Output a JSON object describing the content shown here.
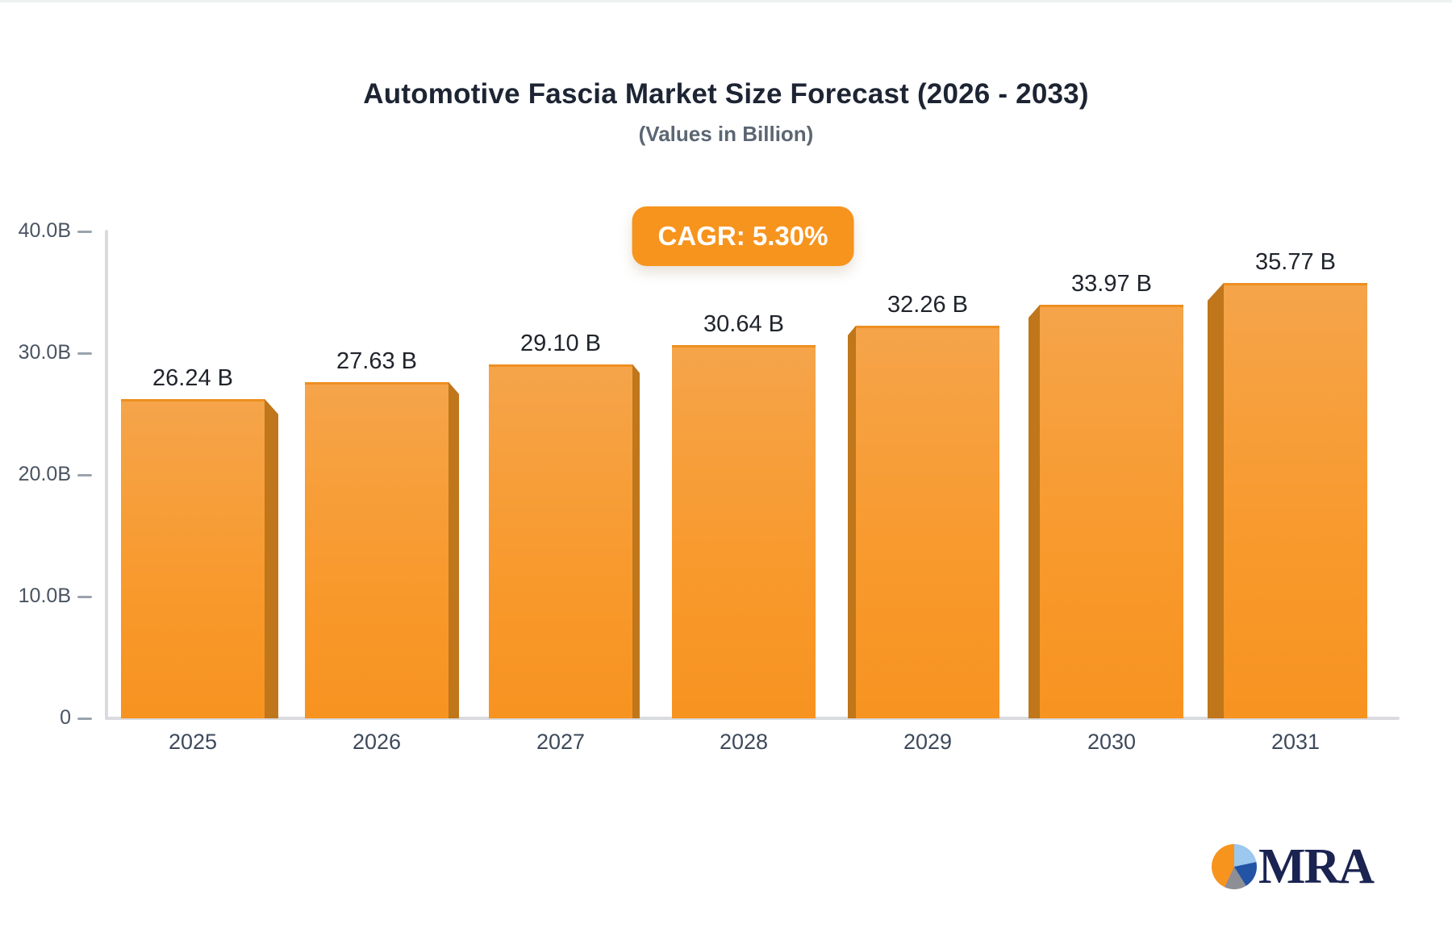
{
  "title": "Automotive Fascia Market Size Forecast (2026 - 2033)",
  "subtitle": "(Values in Billion)",
  "badge": {
    "label": "CAGR: 5.30%",
    "bg_color": "#f7941e",
    "text_color": "#ffffff"
  },
  "chart_data": {
    "type": "bar",
    "categories": [
      "2025",
      "2026",
      "2027",
      "2028",
      "2029",
      "2030",
      "2031"
    ],
    "values": [
      26.24,
      27.63,
      29.1,
      30.64,
      32.26,
      33.97,
      35.77
    ],
    "value_labels": [
      "26.24 B",
      "27.63 B",
      "29.10 B",
      "30.64 B",
      "32.26 B",
      "33.97 B",
      "35.77 B"
    ],
    "title": "Automotive Fascia Market Size Forecast (2026 - 2033)",
    "subtitle": "(Values in Billion)",
    "xlabel": "",
    "ylabel": "",
    "ylim": [
      0,
      40
    ],
    "yticks": [
      {
        "value": 40,
        "label": "40.0B"
      },
      {
        "value": 30,
        "label": "30.0B"
      },
      {
        "value": 20,
        "label": "20.0B"
      },
      {
        "value": 10,
        "label": "10.0B"
      },
      {
        "value": 0,
        "label": "0"
      }
    ],
    "grid": false,
    "legend": false,
    "bar_color_top": "#f5a44a",
    "bar_color_bottom": "#f79320",
    "bar_side_color": "#c0761a",
    "axis_color": "#d9dbdf",
    "tick_color": "#9aa3ad"
  },
  "logo": {
    "text": "MRA",
    "text_color": "#1b2351",
    "pie_slice_colors": {
      "orange": "#f7941e",
      "light_blue": "#9cc7ee",
      "dark_blue": "#2353a4",
      "gray": "#8e8e96"
    }
  }
}
